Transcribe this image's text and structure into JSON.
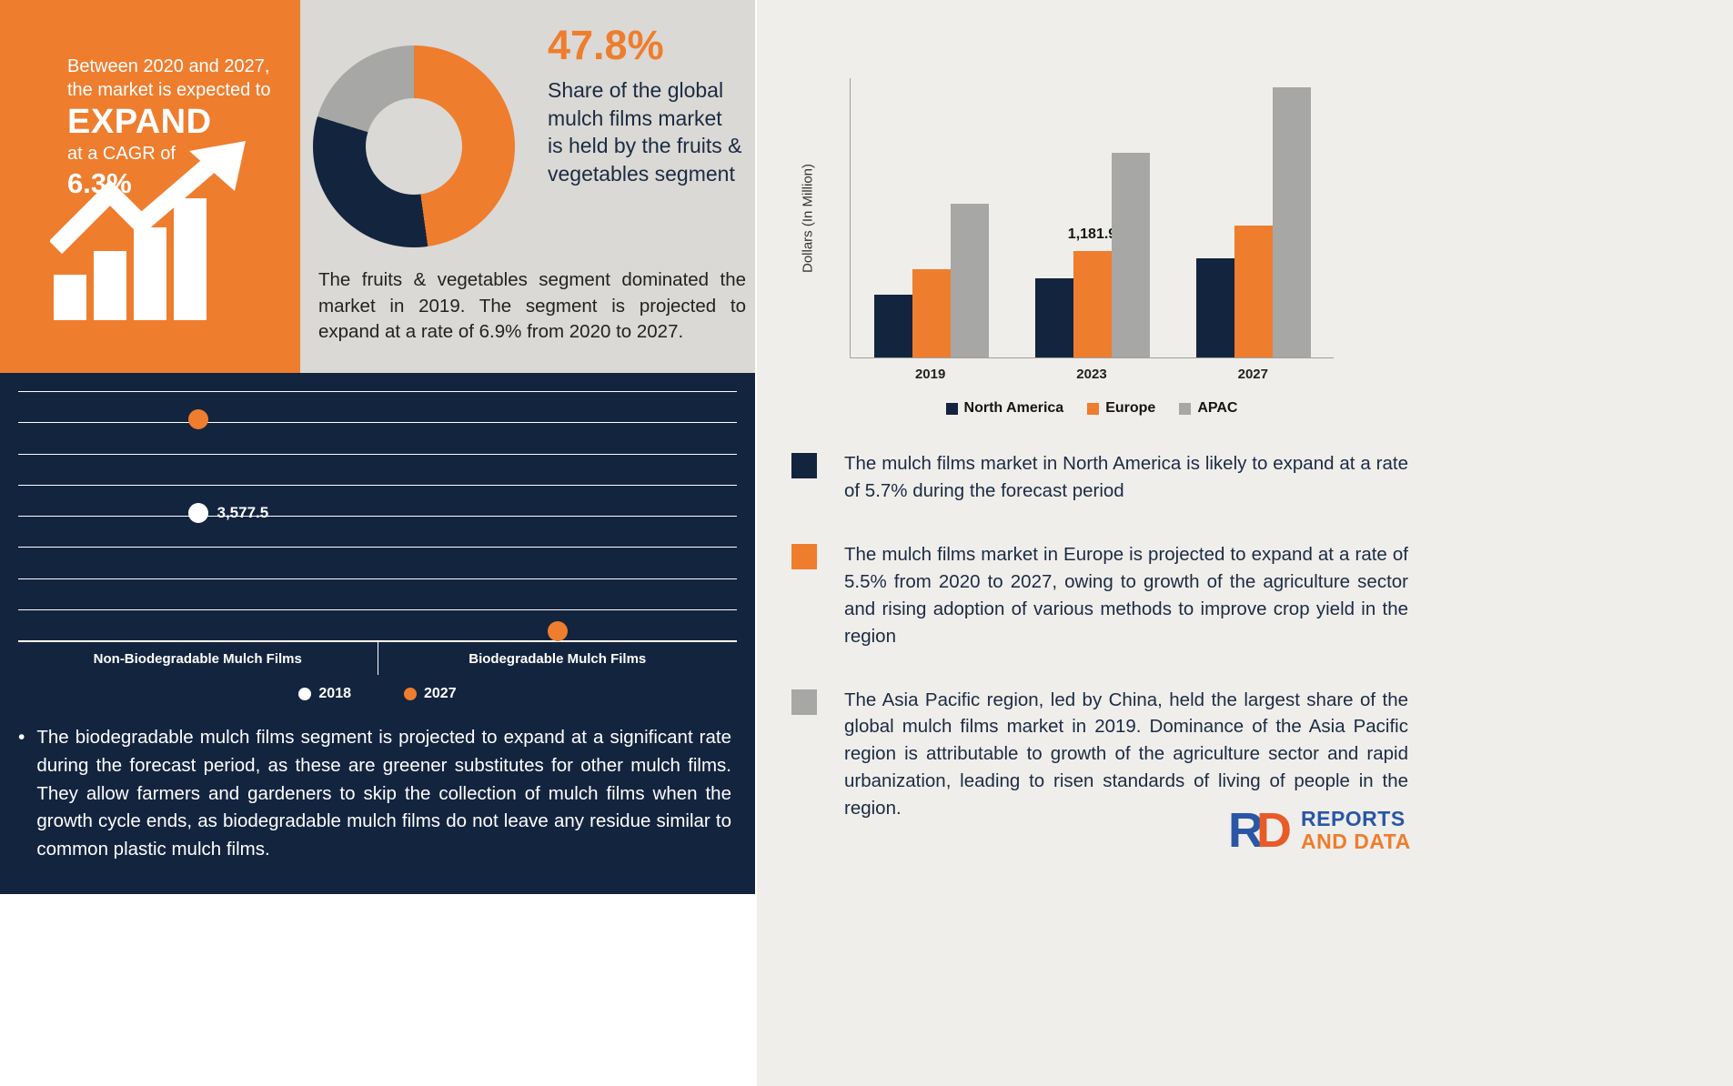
{
  "palette": {
    "orange": "#ee7d2e",
    "navy": "#13243f",
    "light_gray_block": "#dad9d5",
    "panel_gray": "#efeeeb",
    "bar_gray": "#a7a7a5",
    "white": "#ffffff",
    "logo_blue": "#2a56a5",
    "logo_orange": "#e85a28"
  },
  "top_left": {
    "line1": "Between 2020 and 2027,",
    "line2": "the market is expected to",
    "expand": "EXPAND",
    "line3": "at a CAGR of",
    "cagr": "6.3%"
  },
  "donut_block": {
    "headline": "47.8%",
    "subtext": "Share of the global mulch films market is held by the fruits & vegetables segment",
    "paragraph": "The fruits & vegetables segment dominated the market in 2019. The segment is projected to expand at a rate of 6.9% from 2020 to 2027."
  },
  "dot_block": {
    "bullet": "The biodegradable mulch films segment is projected to expand at a significant rate during the forecast period, as these are greener substitutes for other mulch films. They allow farmers and gardeners to skip the collection of mulch films when the growth cycle ends, as biodegradable mulch films do not leave any residue similar to common plastic mulch films."
  },
  "region_bullets": [
    {
      "color": "#13243f",
      "text": "The mulch films market in North America is likely to expand at a rate of 5.7% during the forecast period"
    },
    {
      "color": "#ee7d2e",
      "text": "The mulch films market in Europe is projected to expand at a rate of 5.5% from 2020 to 2027, owing to growth of the agriculture sector and rising adoption of various methods to improve crop yield in the region"
    },
    {
      "color": "#a7a7a5",
      "text": "The Asia Pacific region, led by China, held the largest share of the global mulch films market in 2019. Dominance of the Asia Pacific region is attributable to growth of the agriculture sector and rapid urbanization, leading to risen standards of living of people in the region."
    }
  ],
  "logo": {
    "mark_r": "R",
    "mark_d": "D",
    "top": "REPORTS",
    "bottom": "AND DATA"
  },
  "chart_data": [
    {
      "id": "segment-donut",
      "type": "pie",
      "donut": true,
      "title": "47.8%",
      "slices": [
        {
          "label": "fruits & vegetables segment",
          "value": 47.8,
          "color": "#ee7d2e"
        },
        {
          "label": "",
          "value": 32.0,
          "color": "#13243f"
        },
        {
          "label": "",
          "value": 20.2,
          "color": "#a7a7a5"
        }
      ]
    },
    {
      "id": "type-dot-plot",
      "type": "scatter",
      "categories": [
        "Non-Biodegradable Mulch Films",
        "Biodegradable Mulch Films"
      ],
      "series": [
        {
          "name": "2018",
          "color": "#ffffff",
          "values": [
            3577.5,
            null
          ]
        },
        {
          "name": "2027",
          "color": "#ee7d2e",
          "values": [
            6200,
            250
          ]
        }
      ],
      "ylim": [
        0,
        7000
      ],
      "gridlines": 8,
      "data_labels": [
        {
          "series": "2018",
          "category_index": 0,
          "text": "3,577.5"
        }
      ],
      "legend_position": "bottom"
    },
    {
      "id": "regional-bars",
      "type": "bar",
      "ylabel": "Dollars (In Million)",
      "categories": [
        "2019",
        "2023",
        "2027"
      ],
      "series": [
        {
          "name": "North America",
          "color": "#13243f",
          "values": [
            700,
            880,
            1100
          ]
        },
        {
          "name": "Europe",
          "color": "#ee7d2e",
          "values": [
            980,
            1181.9,
            1460
          ]
        },
        {
          "name": "APAC",
          "color": "#a7a7a5",
          "values": [
            1710,
            2270,
            3000
          ]
        }
      ],
      "ylim": [
        0,
        3100
      ],
      "data_labels": [
        {
          "series": "Europe",
          "category_index": 1,
          "text": "1,181.9"
        }
      ],
      "legend_position": "bottom"
    }
  ]
}
